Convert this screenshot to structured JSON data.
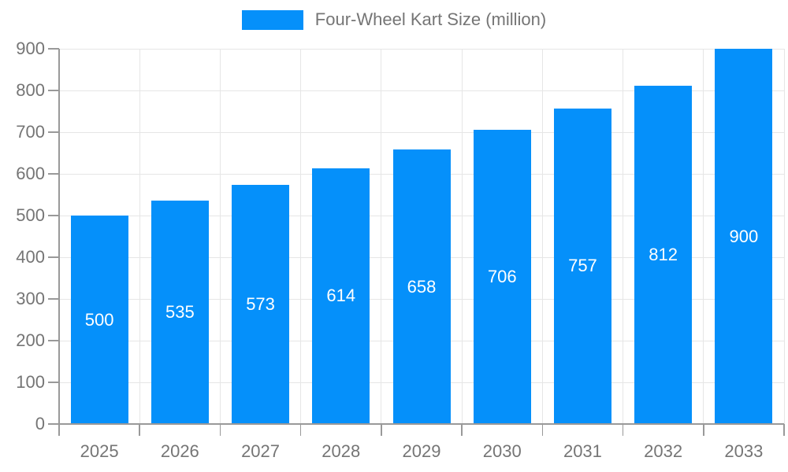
{
  "chart_data": {
    "type": "bar",
    "title": "",
    "legend_label": "Four-Wheel Kart Size (million)",
    "legend_position": "top",
    "categories": [
      "2025",
      "2026",
      "2027",
      "2028",
      "2029",
      "2030",
      "2031",
      "2032",
      "2033"
    ],
    "values": [
      500,
      535,
      573,
      614,
      658,
      706,
      757,
      812,
      900
    ],
    "series": [
      {
        "name": "Four-Wheel Kart Size (million)",
        "values": [
          500,
          535,
          573,
          614,
          658,
          706,
          757,
          812,
          900
        ]
      }
    ],
    "bar_value_labels": [
      "500",
      "535",
      "573",
      "614",
      "658",
      "706",
      "757",
      "812",
      "900"
    ],
    "xlabel": "",
    "ylabel": "",
    "ylim": [
      0,
      900
    ],
    "yticks": [
      0,
      100,
      200,
      300,
      400,
      500,
      600,
      700,
      800,
      900
    ],
    "grid": true,
    "colors": {
      "bar": "#0590fa",
      "grid": "#e6e6e6",
      "axis": "#999999",
      "tick_label": "#757575",
      "bar_label": "#ffffff",
      "background": "#ffffff"
    }
  }
}
